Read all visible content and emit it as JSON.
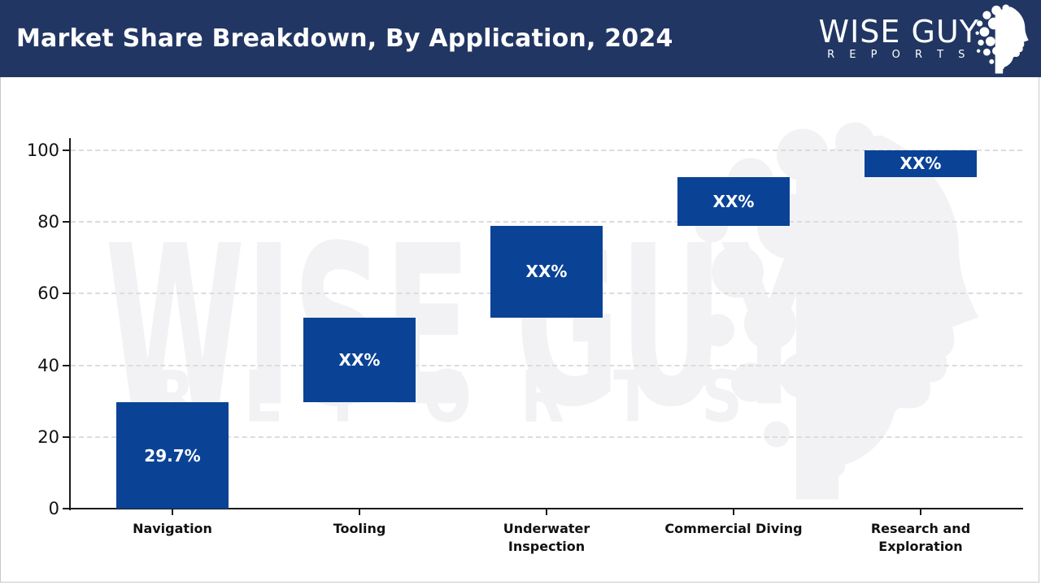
{
  "header": {
    "title": "Market Share Breakdown, By Application, 2024",
    "logo": {
      "line1": "WISE GUY",
      "line2": "R E P O R T S",
      "head_icon": "dotted-head-profile"
    }
  },
  "watermark": {
    "line1": "WISE GUY",
    "line2": "R E P O R T S"
  },
  "colors": {
    "header_bg": "#213663",
    "bar": "#0a4396",
    "bar_label": "#ffffff",
    "axis": "#1a1a1a",
    "gridline": "#dcdcdc",
    "watermark": "#f2f2f4"
  },
  "chart_data": {
    "type": "bar",
    "subtype": "waterfall",
    "title": "Market Share Breakdown, By Application, 2024",
    "categories": [
      "Navigation",
      "Tooling",
      "Underwater\nInspection",
      "Commercial Diving",
      "Research and\nExploration"
    ],
    "segments": [
      {
        "category": "Navigation",
        "start": 0,
        "end": 29.7,
        "label": "29.7%"
      },
      {
        "category": "Tooling",
        "start": 29.7,
        "end": 53.4,
        "label": "XX%"
      },
      {
        "category": "Underwater Inspection",
        "start": 53.4,
        "end": 79.0,
        "label": "XX%"
      },
      {
        "category": "Commercial Diving",
        "start": 79.0,
        "end": 92.6,
        "label": "XX%"
      },
      {
        "category": "Research and Exploration",
        "start": 92.6,
        "end": 100,
        "label": "XX%"
      }
    ],
    "xlabel": "",
    "ylabel": "",
    "ylim": [
      0,
      100
    ],
    "yticks": [
      0,
      20,
      40,
      60,
      80,
      100
    ],
    "grid": "horizontal-dashed",
    "legend": "none"
  }
}
